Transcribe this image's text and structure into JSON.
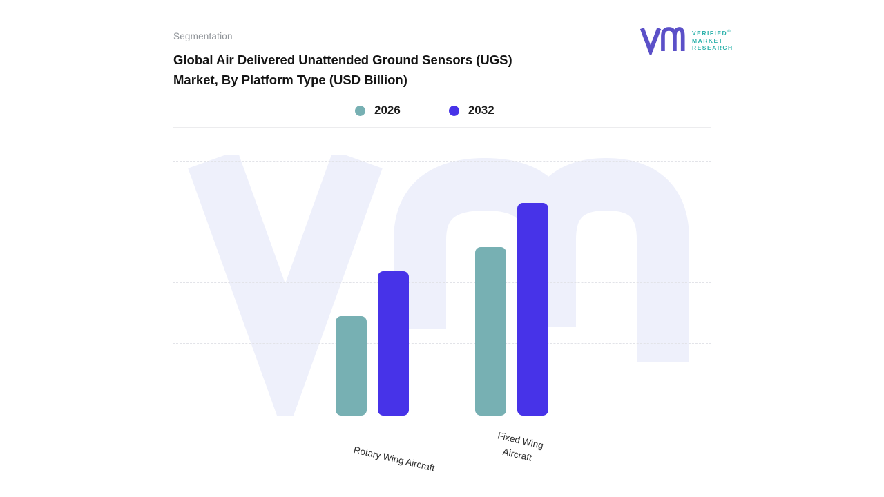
{
  "page": {
    "background": "#ffffff"
  },
  "header": {
    "eyebrow": "Segmentation",
    "title_line1": "Global Air Delivered Unattended Ground Sensors (UGS)",
    "title_line2": "Market, By Platform Type (USD Billion)"
  },
  "brand": {
    "name_lines": [
      "VERIFIED",
      "MARKET",
      "RESEARCH"
    ],
    "registered_mark": "®",
    "text_color": "#2eb2ab",
    "mark_color": "#5b50c8"
  },
  "chart_data": {
    "type": "bar",
    "title": "Global Air Delivered Unattended Ground Sensors (UGS) Market, By Platform Type (USD Billion)",
    "xlabel": "",
    "ylabel": "",
    "unit": "USD Billion",
    "categories": [
      "Rotary Wing Aircraft",
      "Fixed Wing Aircraft"
    ],
    "series": [
      {
        "name": "2026",
        "color": "#77b0b3",
        "values": [
          1.45,
          2.45
        ]
      },
      {
        "name": "2032",
        "color": "#4733e8",
        "values": [
          2.1,
          3.1
        ]
      }
    ],
    "ylim": [
      0,
      3.8
    ],
    "grid": "horizontal-dashed",
    "legend_position": "top-center",
    "watermark": "VMR monogram",
    "watermark_color": "#eef0fb"
  }
}
